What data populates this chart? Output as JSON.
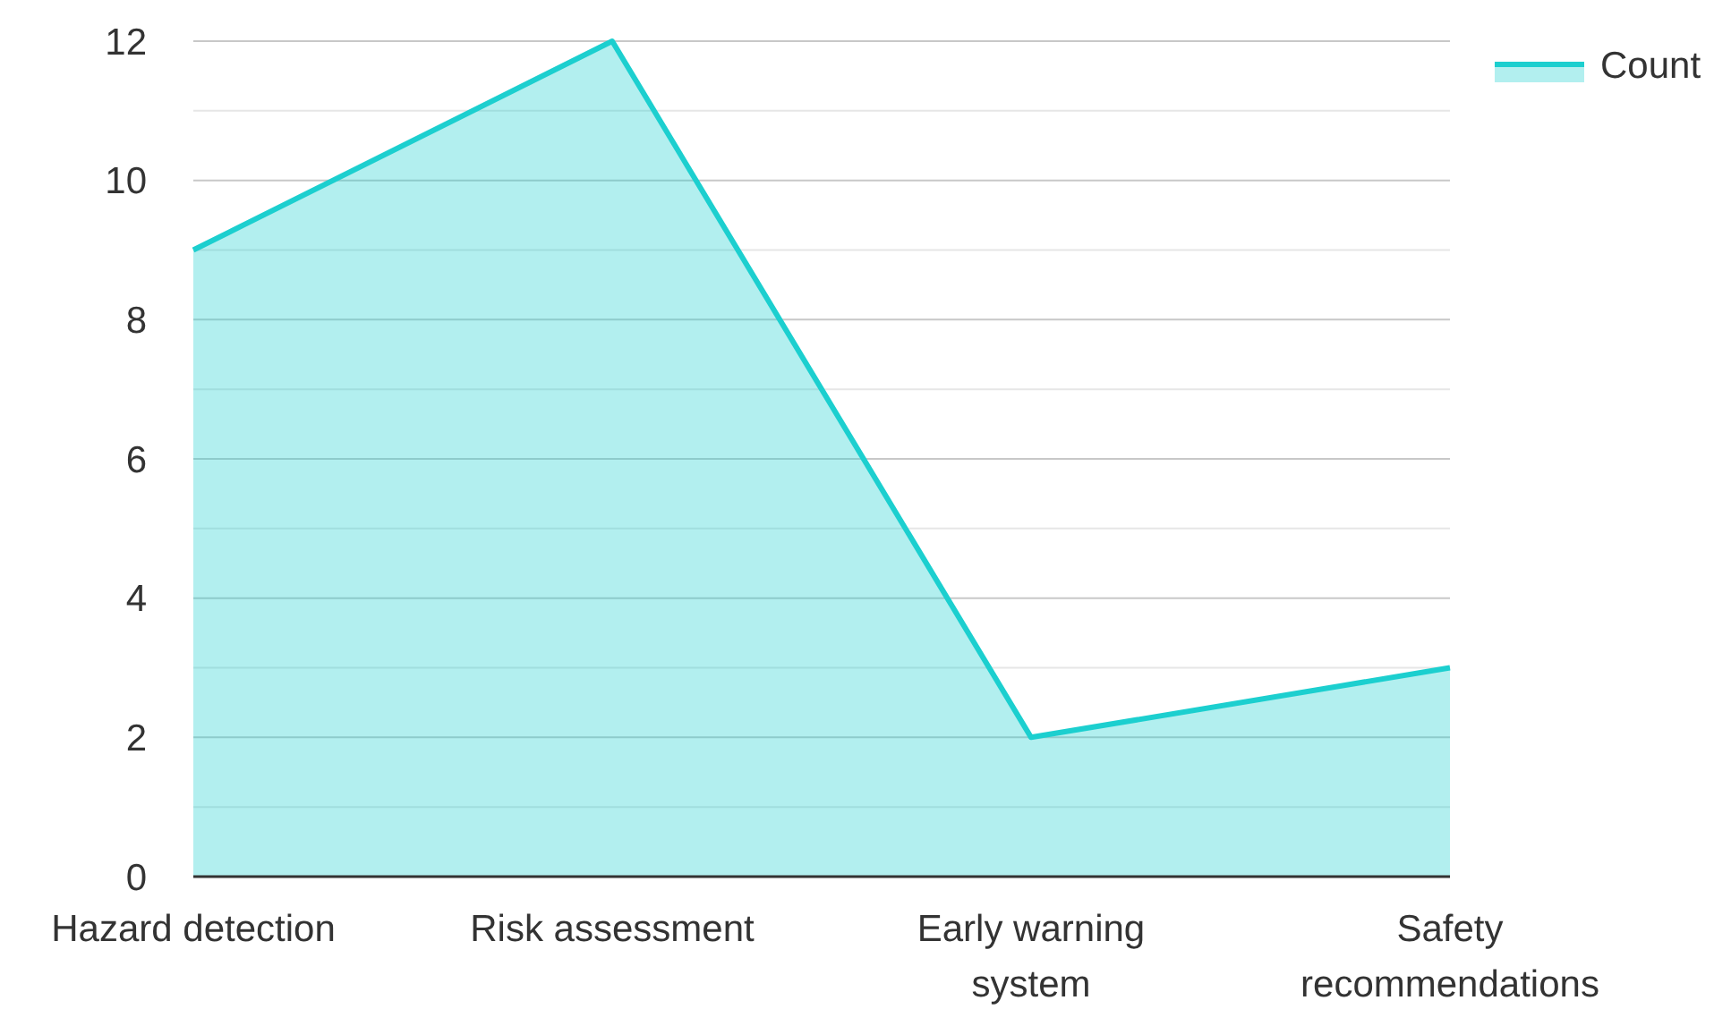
{
  "chart_data": {
    "type": "area",
    "categories": [
      "Hazard detection",
      "Risk assessment",
      "Early warning system",
      "Safety recommendations"
    ],
    "series": [
      {
        "name": "Count",
        "color": "#1ccfcf",
        "values": [
          9,
          12,
          2,
          3
        ]
      }
    ],
    "ylim": [
      0,
      12
    ],
    "yticks": [
      0,
      {
        "value": 1,
        "label": null
      },
      2,
      {
        "value": 3,
        "label": null
      },
      4,
      {
        "value": 5,
        "label": null
      },
      6,
      {
        "value": 7,
        "label": null
      },
      8,
      {
        "value": 9,
        "label": null
      },
      10,
      {
        "value": 11,
        "label": null
      },
      12
    ],
    "grid": "y",
    "legend": "top right"
  }
}
